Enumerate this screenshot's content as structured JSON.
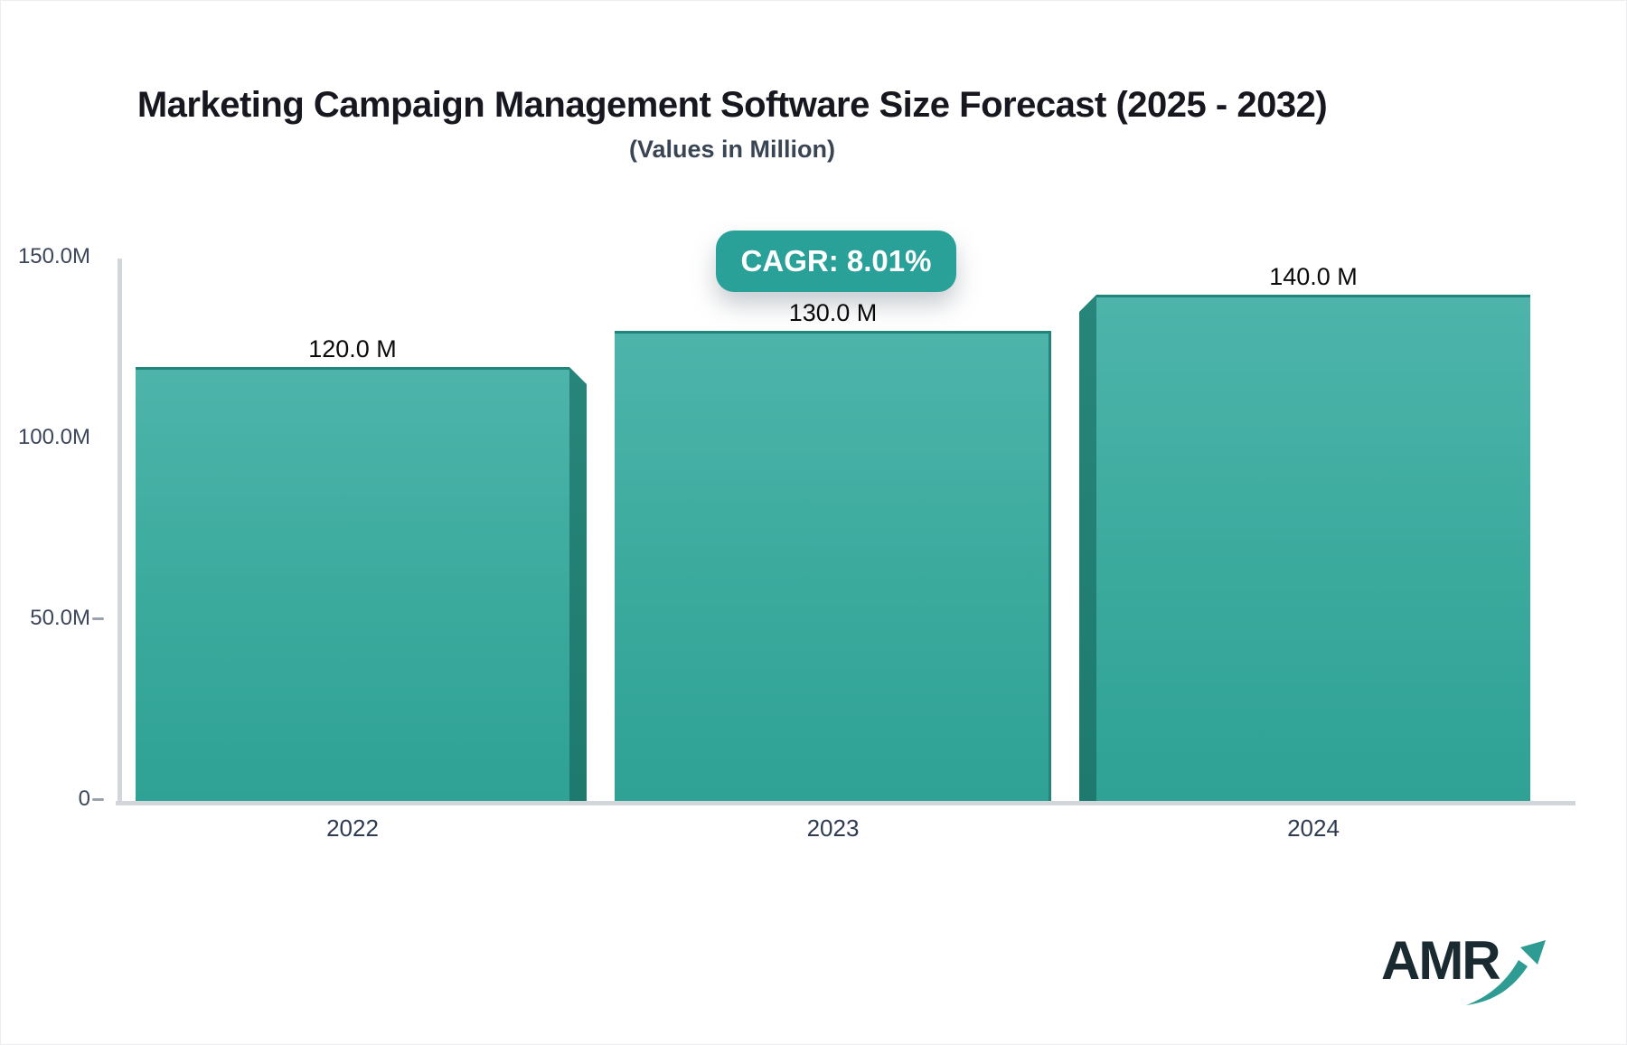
{
  "header": {
    "title": "Marketing Campaign Management Software Size Forecast (2025 - 2032)",
    "subtitle": "(Values in Million)"
  },
  "badge": {
    "label": "CAGR: 8.01%"
  },
  "chart_data": {
    "type": "bar",
    "title": "Marketing Campaign Management Software Size Forecast (2025 - 2032)",
    "subtitle": "(Values in Million)",
    "unit": "Million",
    "cagr_percent": 8.01,
    "categories": [
      "2022",
      "2023",
      "2024"
    ],
    "values": [
      120.0,
      130.0,
      140.0
    ],
    "value_labels": [
      "120.0 M",
      "130.0 M",
      "140.0 M"
    ],
    "y_ticks": [
      {
        "label": "150.0M",
        "value": 150,
        "dash": false
      },
      {
        "label": "100.0M",
        "value": 100,
        "dash": false
      },
      {
        "label": "50.0M",
        "value": 50,
        "dash": true
      },
      {
        "label": "0",
        "value": 0,
        "dash": true
      }
    ],
    "ylim": [
      0,
      150
    ],
    "grid": false,
    "legend": false,
    "style_3d": "side-extrusion toward center vanishing point",
    "bar_color_top": "#4eb4ab",
    "bar_color_bottom": "#2fa195",
    "bar_side_color": "#217c70",
    "bar_top_edge_color": "#1f8578"
  },
  "logo": {
    "text": "AMR",
    "arrow_color": "#2e9c92"
  },
  "colors": {
    "accent_teal": "#29a098",
    "axis_line": "#d2d5da",
    "title_text": "#17171f",
    "subtitle_text": "#3a4554",
    "y_label_text": "#3c4659",
    "category_text": "#2e3b50",
    "value_label_text": "#0a0a0a",
    "badge_text": "#ffffff",
    "logo_text": "#192a31"
  }
}
